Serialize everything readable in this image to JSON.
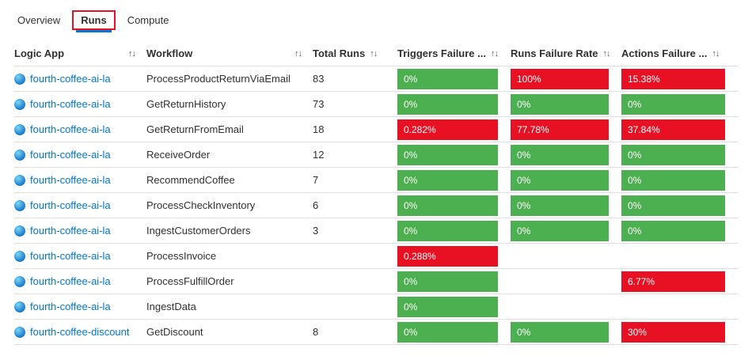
{
  "tabs": [
    {
      "label": "Overview"
    },
    {
      "label": "Runs"
    },
    {
      "label": "Compute"
    }
  ],
  "table": {
    "columns": [
      {
        "label": "Logic App",
        "sort_icon": "↑↓"
      },
      {
        "label": "Workflow",
        "sort_icon": "↑↓"
      },
      {
        "label": "Total Runs",
        "sort_icon": "↑↓"
      },
      {
        "label": "Triggers Failure ...",
        "sort_icon": "↑↓"
      },
      {
        "label": "Runs Failure Rate",
        "sort_icon": "↑↓"
      },
      {
        "label": "Actions Failure ...",
        "sort_icon": "↑↓"
      }
    ],
    "rows": [
      {
        "logic_app": "fourth-coffee-ai-la",
        "workflow": "ProcessProductReturnViaEmail",
        "total_runs": "83",
        "triggers_failure": {
          "value": "0%",
          "status": "green"
        },
        "runs_failure": {
          "value": "100%",
          "status": "red"
        },
        "actions_failure": {
          "value": "15.38%",
          "status": "red"
        }
      },
      {
        "logic_app": "fourth-coffee-ai-la",
        "workflow": "GetReturnHistory",
        "total_runs": "73",
        "triggers_failure": {
          "value": "0%",
          "status": "green"
        },
        "runs_failure": {
          "value": "0%",
          "status": "green"
        },
        "actions_failure": {
          "value": "0%",
          "status": "green"
        }
      },
      {
        "logic_app": "fourth-coffee-ai-la",
        "workflow": "GetReturnFromEmail",
        "total_runs": "18",
        "triggers_failure": {
          "value": "0.282%",
          "status": "red"
        },
        "runs_failure": {
          "value": "77.78%",
          "status": "red"
        },
        "actions_failure": {
          "value": "37.84%",
          "status": "red"
        }
      },
      {
        "logic_app": "fourth-coffee-ai-la",
        "workflow": "ReceiveOrder",
        "total_runs": "12",
        "triggers_failure": {
          "value": "0%",
          "status": "green"
        },
        "runs_failure": {
          "value": "0%",
          "status": "green"
        },
        "actions_failure": {
          "value": "0%",
          "status": "green"
        }
      },
      {
        "logic_app": "fourth-coffee-ai-la",
        "workflow": "RecommendCoffee",
        "total_runs": "7",
        "triggers_failure": {
          "value": "0%",
          "status": "green"
        },
        "runs_failure": {
          "value": "0%",
          "status": "green"
        },
        "actions_failure": {
          "value": "0%",
          "status": "green"
        }
      },
      {
        "logic_app": "fourth-coffee-ai-la",
        "workflow": "ProcessCheckInventory",
        "total_runs": "6",
        "triggers_failure": {
          "value": "0%",
          "status": "green"
        },
        "runs_failure": {
          "value": "0%",
          "status": "green"
        },
        "actions_failure": {
          "value": "0%",
          "status": "green"
        }
      },
      {
        "logic_app": "fourth-coffee-ai-la",
        "workflow": "IngestCustomerOrders",
        "total_runs": "3",
        "triggers_failure": {
          "value": "0%",
          "status": "green"
        },
        "runs_failure": {
          "value": "0%",
          "status": "green"
        },
        "actions_failure": {
          "value": "0%",
          "status": "green"
        }
      },
      {
        "logic_app": "fourth-coffee-ai-la",
        "workflow": "ProcessInvoice",
        "total_runs": "",
        "triggers_failure": {
          "value": "0.288%",
          "status": "red"
        },
        "runs_failure": {
          "value": "",
          "status": "empty"
        },
        "actions_failure": {
          "value": "",
          "status": "empty"
        }
      },
      {
        "logic_app": "fourth-coffee-ai-la",
        "workflow": "ProcessFulfillOrder",
        "total_runs": "",
        "triggers_failure": {
          "value": "0%",
          "status": "green"
        },
        "runs_failure": {
          "value": "",
          "status": "empty"
        },
        "actions_failure": {
          "value": "6.77%",
          "status": "red"
        }
      },
      {
        "logic_app": "fourth-coffee-ai-la",
        "workflow": "IngestData",
        "total_runs": "",
        "triggers_failure": {
          "value": "0%",
          "status": "green"
        },
        "runs_failure": {
          "value": "",
          "status": "empty"
        },
        "actions_failure": {
          "value": "",
          "status": "empty"
        }
      },
      {
        "logic_app": "fourth-coffee-discount",
        "workflow": "GetDiscount",
        "total_runs": "8",
        "triggers_failure": {
          "value": "0%",
          "status": "green"
        },
        "runs_failure": {
          "value": "0%",
          "status": "green"
        },
        "actions_failure": {
          "value": "30%",
          "status": "red"
        }
      }
    ]
  },
  "colors": {
    "success_green": "#4caf50",
    "failure_red": "#e81123",
    "link_blue": "#0078d4",
    "tab_highlight_red": "#e81123",
    "tab_underline_blue": "#0078d4"
  }
}
